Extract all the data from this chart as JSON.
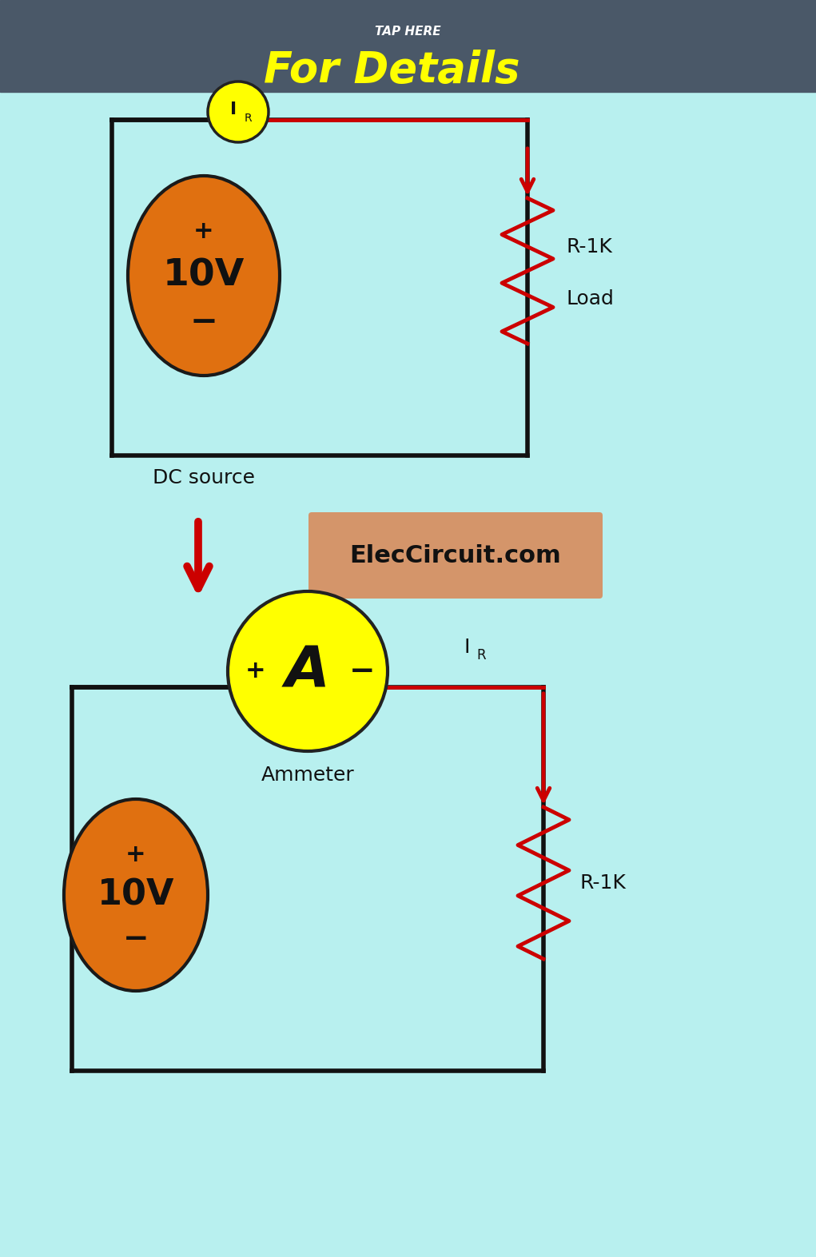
{
  "bg_color": "#b8f0ef",
  "header_bg": "#4a5868",
  "header_text1": "TAP HERE",
  "header_text2": "For Details",
  "header_text1_color": "#ffffff",
  "header_text2_color": "#ffff00",
  "circuit1": {
    "battery_color": "#e07010",
    "battery_text": "10V",
    "battery_plus": "+",
    "battery_minus": "−",
    "battery_label": "DC source",
    "resistor_color": "#cc0000",
    "resistor_label1": "R-1K",
    "resistor_label2": "Load",
    "wire_color": "#111111",
    "arrow_color": "#cc0000"
  },
  "circuit2": {
    "battery_color": "#e07010",
    "battery_text": "10V",
    "battery_plus": "+",
    "battery_minus": "−",
    "ammeter_color": "#ffff00",
    "ammeter_label": "A",
    "ammeter_plus": "+",
    "ammeter_minus": "−",
    "ammeter_sublabel": "Ammeter",
    "resistor_color": "#cc0000",
    "resistor_label": "R-1K",
    "wire_color": "#111111",
    "arrow_color": "#cc0000"
  },
  "mid_arrow_color": "#cc0000",
  "elec_box_color": "#d4956a",
  "elec_text": "ElecCircuit.com",
  "elec_text_color": "#111111"
}
